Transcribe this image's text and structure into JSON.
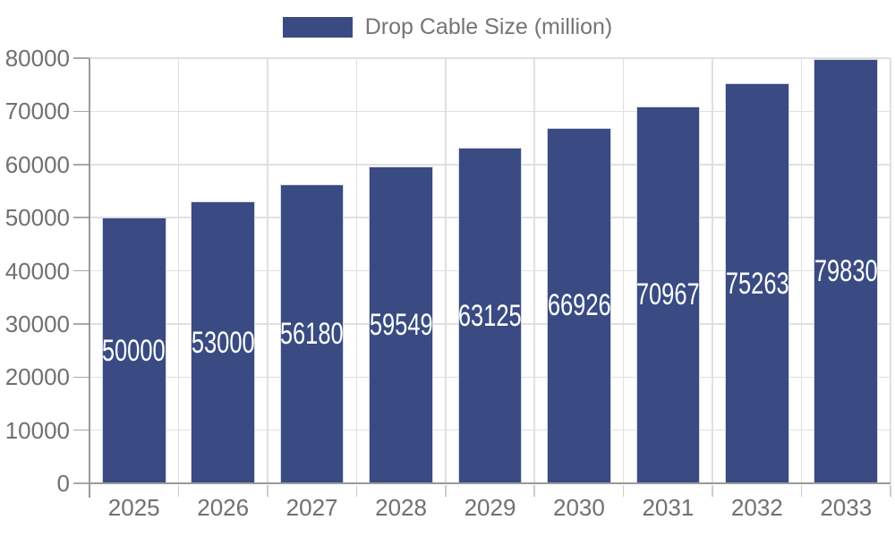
{
  "legend": {
    "items": [
      {
        "label": "Drop Cable Size (million)",
        "color": "#394B82"
      }
    ]
  },
  "chart_data": {
    "type": "bar",
    "title": "",
    "categories": [
      "2025",
      "2026",
      "2027",
      "2028",
      "2029",
      "2030",
      "2031",
      "2032",
      "2033"
    ],
    "series": [
      {
        "name": "Drop Cable Size (million)",
        "values": [
          50000,
          53000,
          56180,
          59549,
          63125,
          66926,
          70967,
          75263,
          79830
        ]
      }
    ],
    "xlabel": "",
    "ylabel": "",
    "ylim": [
      0,
      80000
    ],
    "ytick_interval": 10000,
    "yticks": [
      0,
      10000,
      20000,
      30000,
      40000,
      50000,
      60000,
      70000,
      80000
    ],
    "grid": true,
    "legend_position": "top-center",
    "value_labels": true,
    "bar_color": "#394B82"
  },
  "colors": {
    "bar": "#394B82",
    "bar_border": "#d5d9e5",
    "grid": "#e0e0e0",
    "axis": "#999999",
    "y_tick": "#a8a8a8",
    "x_tick": "#cccccc",
    "axis_text": "#707070",
    "legend_text": "#757575",
    "value_label": "#ffffff",
    "background": "#ffffff"
  }
}
